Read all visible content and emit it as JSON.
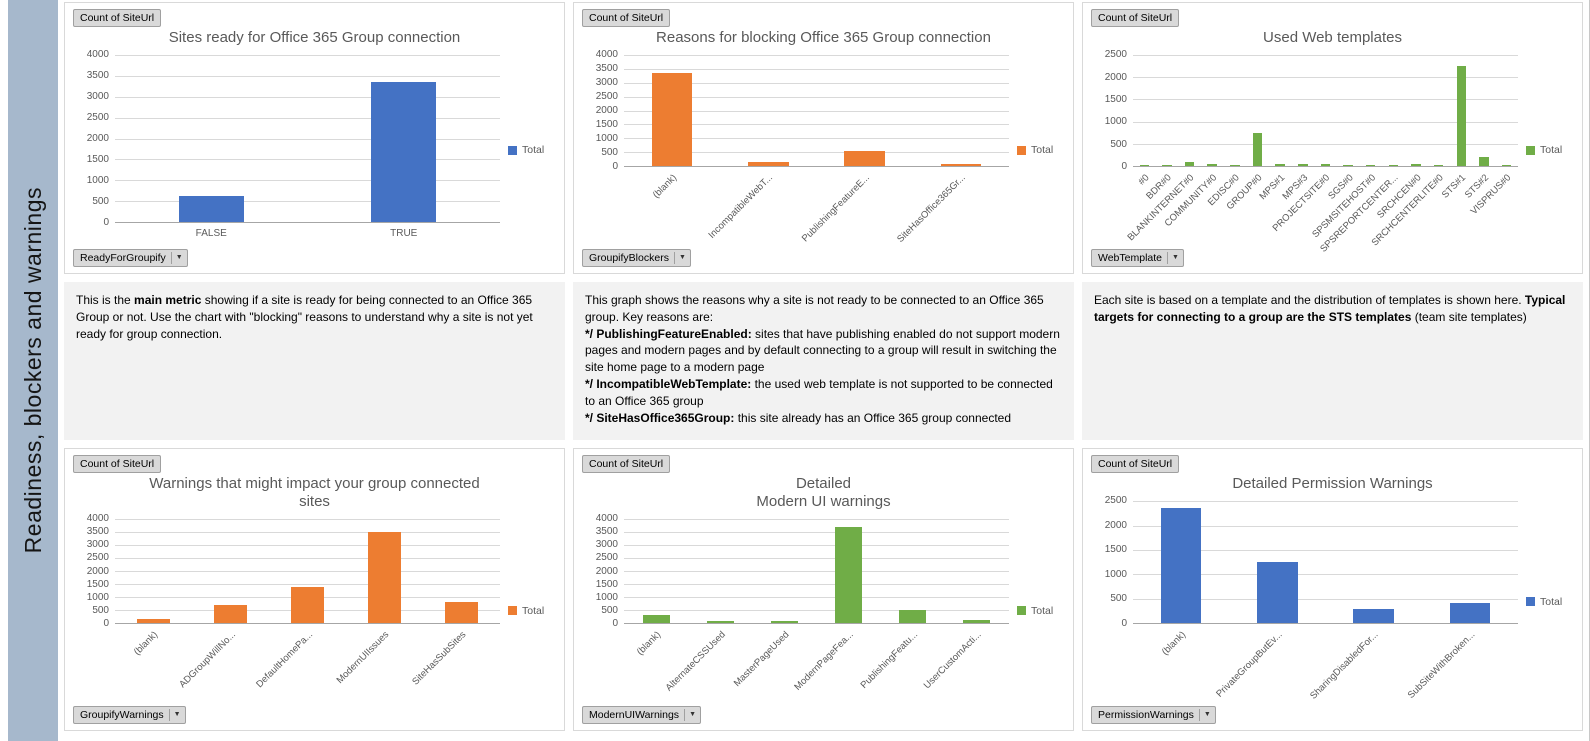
{
  "sidebar": {
    "label": "Readiness, blockers and warnings"
  },
  "icons": {
    "dropdown_arrow": "▼"
  },
  "panels": [
    {
      "pivot_button": "Count of SiteUrl",
      "filter_button": "ReadyForGroupify"
    },
    {
      "pivot_button": "Count of SiteUrl",
      "filter_button": "GroupifyBlockers"
    },
    {
      "pivot_button": "Count of SiteUrl",
      "filter_button": "WebTemplate"
    },
    {
      "pivot_button": "Count of SiteUrl",
      "filter_button": "GroupifyWarnings"
    },
    {
      "pivot_button": "Count of SiteUrl",
      "filter_button": "ModernUIWarnings"
    },
    {
      "pivot_button": "Count of SiteUrl",
      "filter_button": "PermissionWarnings"
    }
  ],
  "textboxes": [
    {
      "segments": [
        {
          "text": "This is the ",
          "bold": false
        },
        {
          "text": "main metric",
          "bold": true
        },
        {
          "text": " showing if a site is ready for being connected to an Office 365 Group or not. Use the chart with \"blocking\" reasons to understand why a site is not yet ready for group connection.",
          "bold": false
        }
      ]
    },
    {
      "segments": [
        {
          "text": "This graph shows the reasons why a site is not ready to be connected to an Office 365 group. Key reasons are:\n",
          "bold": false
        },
        {
          "text": "*/ PublishingFeatureEnabled:",
          "bold": true
        },
        {
          "text": " sites that have publishing enabled do not support modern pages and modern pages and by default connecting to a group will result in switching the site home page to a modern page\n",
          "bold": false
        },
        {
          "text": "*/ IncompatibleWebTemplate:",
          "bold": true
        },
        {
          "text": " the used web template is not supported to be connected to an Office 365 group\n",
          "bold": false
        },
        {
          "text": "*/ SiteHasOffice365Group:",
          "bold": true
        },
        {
          "text": " this site already has an Office 365 group connected",
          "bold": false
        }
      ]
    },
    {
      "segments": [
        {
          "text": "Each site is based on a template and the distribution of templates is shown here. ",
          "bold": false
        },
        {
          "text": "Typical targets for connecting to a group are the STS templates",
          "bold": true
        },
        {
          "text": " (team site templates)",
          "bold": false
        }
      ]
    }
  ],
  "chart_data": [
    {
      "type": "bar",
      "title": "Sites ready for Office 365 Group connection",
      "categories": [
        "FALSE",
        "TRUE"
      ],
      "series": [
        {
          "name": "Total",
          "values": [
            620,
            3350
          ]
        }
      ],
      "color": "#4472C4",
      "ylim": [
        0,
        4000
      ],
      "ytick_step": 500,
      "label_rotation": 0,
      "grid": true,
      "legend_position": "right"
    },
    {
      "type": "bar",
      "title": "Reasons for blocking Office 365 Group connection",
      "categories": [
        "(blank)",
        "IncompatibleWebT...",
        "PublishingFeatureE...",
        "SiteHasOffice365Gr..."
      ],
      "series": [
        {
          "name": "Total",
          "values": [
            3350,
            140,
            520,
            50
          ]
        }
      ],
      "color": "#ED7D31",
      "ylim": [
        0,
        4000
      ],
      "ytick_step": 500,
      "label_rotation": 45,
      "grid": true,
      "legend_position": "right"
    },
    {
      "type": "bar",
      "title": "Used Web templates",
      "categories": [
        "#0",
        "BDR#0",
        "BLANKINTERNET#0",
        "COMMUNITY#0",
        "EDISC#0",
        "GROUP#0",
        "MPS#1",
        "MPS#3",
        "PROJECTSITE#0",
        "SGS#0",
        "SPSMSITEHOST#0",
        "SPSREPORTCENTER...",
        "SRCHCEN#0",
        "SRCHCENTERLITE#0",
        "STS#1",
        "STS#2",
        "VISPRUS#0"
      ],
      "series": [
        {
          "name": "Total",
          "values": [
            30,
            30,
            90,
            40,
            30,
            750,
            40,
            40,
            40,
            30,
            30,
            30,
            40,
            30,
            2250,
            200,
            30
          ]
        }
      ],
      "color": "#70AD47",
      "ylim": [
        0,
        2500
      ],
      "ytick_step": 500,
      "label_rotation": 45,
      "grid": true,
      "legend_position": "right"
    },
    {
      "type": "bar",
      "title": "Warnings that might impact your group connected\nsites",
      "categories": [
        "(blank)",
        "ADGroupWillNo...",
        "DefaultHomePa...",
        "ModernUIIssues",
        "SiteHasSubSites"
      ],
      "series": [
        {
          "name": "Total",
          "values": [
            160,
            700,
            1400,
            3500,
            800
          ]
        }
      ],
      "color": "#ED7D31",
      "ylim": [
        0,
        4000
      ],
      "ytick_step": 500,
      "label_rotation": 45,
      "grid": true,
      "legend_position": "right"
    },
    {
      "type": "bar",
      "title": "Detailed\nModern UI warnings",
      "categories": [
        "(blank)",
        "AlternateCSSUsed",
        "MasterPageUsed",
        "ModernPageFea...",
        "PublishingFeatu...",
        "UserCustomActi..."
      ],
      "series": [
        {
          "name": "Total",
          "values": [
            300,
            90,
            80,
            3700,
            500,
            110
          ]
        }
      ],
      "color": "#70AD47",
      "ylim": [
        0,
        4000
      ],
      "ytick_step": 500,
      "label_rotation": 45,
      "grid": true,
      "legend_position": "right"
    },
    {
      "type": "bar",
      "title": "Detailed Permission Warnings",
      "categories": [
        "(blank)",
        "PrivateGroupButEv...",
        "SharingDisabledFor...",
        "SubSiteWithBroken..."
      ],
      "series": [
        {
          "name": "Total",
          "values": [
            2350,
            1250,
            290,
            400
          ]
        }
      ],
      "color": "#4472C4",
      "ylim": [
        0,
        2500
      ],
      "ytick_step": 500,
      "label_rotation": 45,
      "grid": true,
      "legend_position": "right"
    }
  ]
}
